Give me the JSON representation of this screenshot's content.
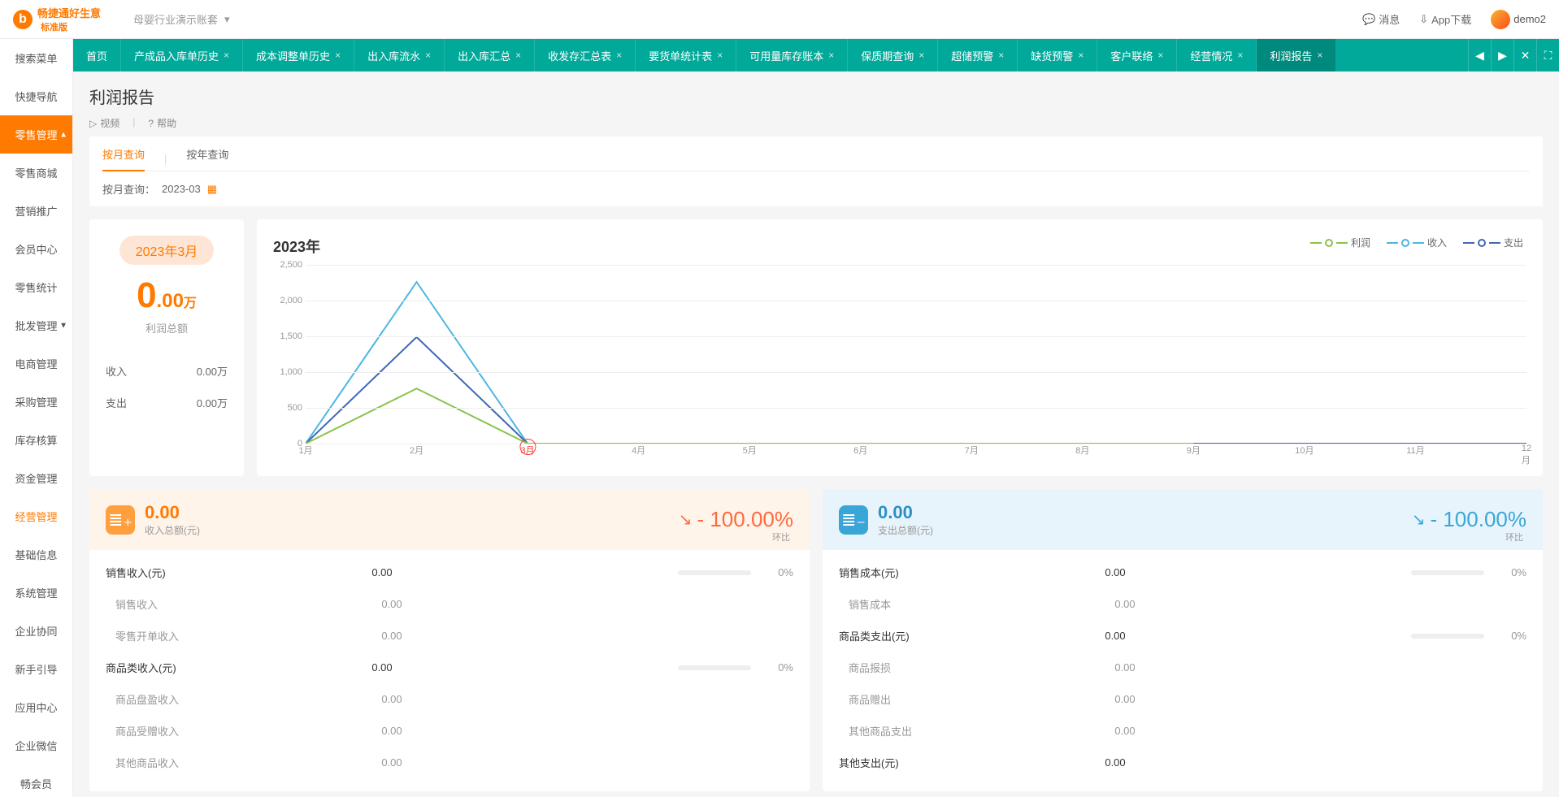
{
  "header": {
    "brand": "畅捷通好生意",
    "brand_sub": "标准版",
    "account": "母婴行业演示账套",
    "messages": "消息",
    "app_download": "App下载",
    "username": "demo2"
  },
  "sidebar": {
    "items": [
      {
        "label": "搜索菜单",
        "name": "search-menu"
      },
      {
        "label": "快捷导航",
        "name": "quick-nav"
      },
      {
        "label": "零售管理",
        "name": "retail-manage",
        "active": true,
        "caret": "▲"
      },
      {
        "label": "零售商城",
        "name": "retail-mall",
        "sub": true
      },
      {
        "label": "营销推广",
        "name": "marketing",
        "sub": true
      },
      {
        "label": "会员中心",
        "name": "member-center",
        "sub": true
      },
      {
        "label": "零售统计",
        "name": "retail-stats",
        "sub": true
      },
      {
        "label": "批发管理",
        "name": "wholesale",
        "caret": "▼"
      },
      {
        "label": "电商管理",
        "name": "ecommerce"
      },
      {
        "label": "采购管理",
        "name": "purchase"
      },
      {
        "label": "库存核算",
        "name": "inventory-acc"
      },
      {
        "label": "资金管理",
        "name": "funds"
      },
      {
        "label": "经营管理",
        "name": "operation",
        "sub_active": true
      },
      {
        "label": "基础信息",
        "name": "basic-info"
      },
      {
        "label": "系统管理",
        "name": "system"
      },
      {
        "label": "企业协同",
        "name": "enterprise-coop"
      },
      {
        "label": "新手引导",
        "name": "guide"
      },
      {
        "label": "应用中心",
        "name": "app-center"
      },
      {
        "label": "企业微信",
        "name": "wechat-work"
      },
      {
        "label": "畅会员",
        "name": "chang-member"
      }
    ]
  },
  "tabs": [
    {
      "label": "首页",
      "closable": false
    },
    {
      "label": "产成品入库单历史",
      "closable": true
    },
    {
      "label": "成本调整单历史",
      "closable": true
    },
    {
      "label": "出入库流水",
      "closable": true
    },
    {
      "label": "出入库汇总",
      "closable": true
    },
    {
      "label": "收发存汇总表",
      "closable": true
    },
    {
      "label": "要货单统计表",
      "closable": true
    },
    {
      "label": "可用量库存账本",
      "closable": true
    },
    {
      "label": "保质期查询",
      "closable": true
    },
    {
      "label": "超储预警",
      "closable": true
    },
    {
      "label": "缺货预警",
      "closable": true
    },
    {
      "label": "客户联络",
      "closable": true
    },
    {
      "label": "经营情况",
      "closable": true
    },
    {
      "label": "利润报告",
      "closable": true,
      "active": true
    }
  ],
  "page": {
    "title": "利润报告",
    "video": "视频",
    "help": "帮助",
    "query_tabs": [
      "按月查询",
      "按年查询"
    ],
    "query_active": 0,
    "query_label": "按月查询：",
    "query_value": "2023-03"
  },
  "summary": {
    "period": "2023年3月",
    "total_int": "0",
    "total_dec": ".00",
    "total_unit": "万",
    "total_label": "利润总额",
    "rows": [
      {
        "label": "收入",
        "value": "0.00万"
      },
      {
        "label": "支出",
        "value": "0.00万"
      }
    ]
  },
  "chart": {
    "title": "2023年",
    "legend": [
      {
        "label": "利润",
        "color": "#8bc34a"
      },
      {
        "label": "收入",
        "color": "#4db6e2"
      },
      {
        "label": "支出",
        "color": "#3f68b5"
      }
    ],
    "y_ticks": [
      0,
      500,
      1000,
      1500,
      2000,
      2500
    ],
    "ylim": [
      0,
      2500
    ],
    "x_labels": [
      "1月",
      "2月",
      "3月",
      "4月",
      "5月",
      "6月",
      "7月",
      "8月",
      "9月",
      "10月",
      "11月",
      "12月"
    ],
    "current_x": 2,
    "series": {
      "profit": [
        0,
        770,
        0,
        0,
        0,
        0,
        0,
        0,
        0,
        0,
        0,
        0
      ],
      "income": [
        0,
        2260,
        0,
        0,
        0,
        0,
        0,
        0,
        0,
        0,
        0,
        0
      ],
      "expense": [
        0,
        1490,
        0,
        0,
        0,
        0,
        0,
        0,
        0,
        0,
        0,
        0
      ]
    },
    "profit_xmax_idx": 8,
    "grid_color": "#eeeeee"
  },
  "income_panel": {
    "amount": "0.00",
    "sub": "收入总额(元)",
    "ratio_label": "环比",
    "ratio_value": "- 100.00%",
    "rows": [
      {
        "name": "销售收入(元)",
        "val": "0.00",
        "pct": "0%",
        "bold": true
      },
      {
        "name": "销售收入",
        "val": "0.00",
        "sub": true
      },
      {
        "name": "零售开单收入",
        "val": "0.00",
        "sub": true
      },
      {
        "name": "商品类收入(元)",
        "val": "0.00",
        "pct": "0%",
        "bold": true
      },
      {
        "name": "商品盘盈收入",
        "val": "0.00",
        "sub": true
      },
      {
        "name": "商品受赠收入",
        "val": "0.00",
        "sub": true
      },
      {
        "name": "其他商品收入",
        "val": "0.00",
        "sub": true
      }
    ]
  },
  "expense_panel": {
    "amount": "0.00",
    "sub": "支出总额(元)",
    "ratio_label": "环比",
    "ratio_value": "- 100.00%",
    "rows": [
      {
        "name": "销售成本(元)",
        "val": "0.00",
        "pct": "0%",
        "bold": true
      },
      {
        "name": "销售成本",
        "val": "0.00",
        "sub": true
      },
      {
        "name": "商品类支出(元)",
        "val": "0.00",
        "pct": "0%",
        "bold": true
      },
      {
        "name": "商品报损",
        "val": "0.00",
        "sub": true
      },
      {
        "name": "商品赠出",
        "val": "0.00",
        "sub": true
      },
      {
        "name": "其他商品支出",
        "val": "0.00",
        "sub": true
      },
      {
        "name": "其他支出(元)",
        "val": "0.00",
        "bold": true
      }
    ]
  }
}
